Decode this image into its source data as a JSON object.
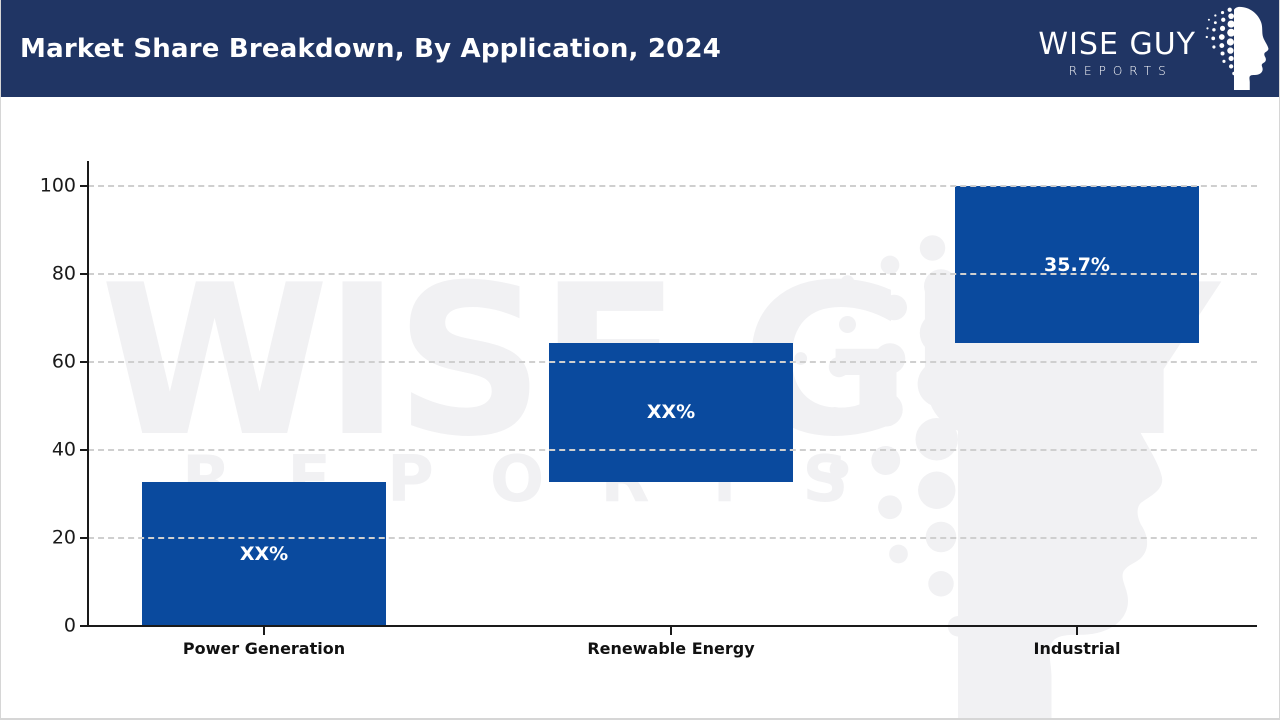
{
  "header": {
    "title": "Market Share Breakdown, By Application, 2024",
    "logo": {
      "wordmark": "WISE GUY",
      "subtext": "REPORTS"
    }
  },
  "watermark": {
    "wordmark": "WISE GUY",
    "subtext": "REPORTS"
  },
  "chart_data": {
    "type": "bar",
    "subtype": "floating-waterfall",
    "title": "Market Share Breakdown, By Application, 2024",
    "categories": [
      "Power Generation",
      "Renewable Energy",
      "Industrial"
    ],
    "segments": [
      {
        "category": "Power Generation",
        "start": 0,
        "end": 32.8,
        "label": "XX%"
      },
      {
        "category": "Renewable Energy",
        "start": 32.8,
        "end": 64.3,
        "label": "XX%"
      },
      {
        "category": "Industrial",
        "start": 64.3,
        "end": 100,
        "label": "35.7%"
      }
    ],
    "yticks": [
      0,
      20,
      40,
      60,
      80,
      100
    ],
    "ylim": [
      0,
      105
    ],
    "xlabel": "",
    "ylabel": "",
    "grid": "horizontal-dashed",
    "legend": "none",
    "bar_color": "#0a4a9e",
    "value_label_color": "#ffffff",
    "header_color": "#203564",
    "gridline_color": "#cfcfcf",
    "axis_color": "#1a1a1a"
  }
}
